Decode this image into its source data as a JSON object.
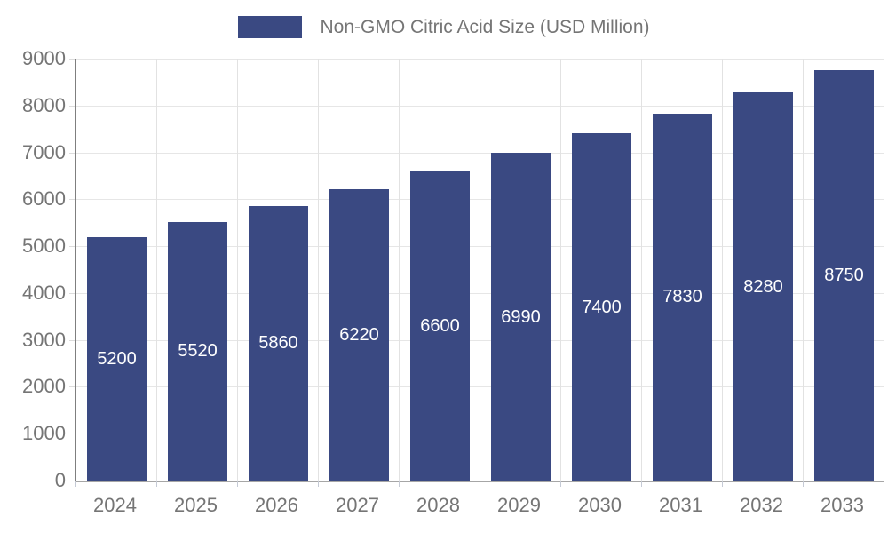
{
  "chart_data": {
    "type": "bar",
    "title": "Non-GMO Citric Acid Size (USD Million)",
    "categories": [
      "2024",
      "2025",
      "2026",
      "2027",
      "2028",
      "2029",
      "2030",
      "2031",
      "2032",
      "2033"
    ],
    "values": [
      5200,
      5520,
      5860,
      6220,
      6600,
      6990,
      7400,
      7830,
      8280,
      8750
    ],
    "xlabel": "",
    "ylabel": "",
    "ylim": [
      0,
      9000
    ],
    "ytick_step": 1000,
    "grid": true,
    "legend_position": "top",
    "colors": {
      "bar": "#3A4982",
      "value_label": "#ffffff",
      "axis_text": "#757575",
      "gridline": "#e6e6e6"
    }
  }
}
